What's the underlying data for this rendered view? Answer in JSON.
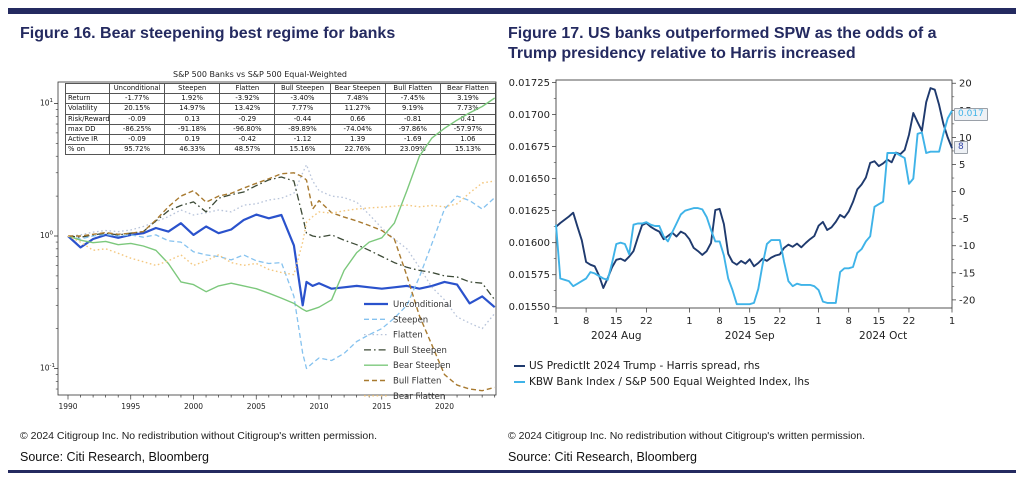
{
  "page": {
    "brand_color": "#242a60",
    "background": "#ffffff"
  },
  "figure16": {
    "title": "Figure 16. Bear steepening best regime for banks",
    "chart_title": "S&P 500 Banks vs S&P 500 Equal-Weighted",
    "copyright": "© 2024 Citigroup Inc. No redistribution without Citigroup's written permission.",
    "source": "Source: Citi Research, Bloomberg",
    "table": {
      "columns": [
        "",
        "Unconditional",
        "Steepen",
        "Flatten",
        "Bull Steepen",
        "Bear Steepen",
        "Bull Flatten",
        "Bear Flatten"
      ],
      "rows": [
        {
          "label": "Return",
          "values": [
            "-1.77%",
            "1.92%",
            "-3.92%",
            "-3.40%",
            "7.48%",
            "-7.45%",
            "3.19%"
          ]
        },
        {
          "label": "Volatility",
          "values": [
            "20.15%",
            "14.97%",
            "13.42%",
            "7.77%",
            "11.27%",
            "9.19%",
            "7.73%"
          ]
        },
        {
          "label": "Risk/Reward",
          "values": [
            "-0.09",
            "0.13",
            "-0.29",
            "-0.44",
            "0.66",
            "-0.81",
            "0.41"
          ]
        },
        {
          "label": "max DD",
          "values": [
            "-86.25%",
            "-91.18%",
            "-96.80%",
            "-89.89%",
            "-74.04%",
            "-97.86%",
            "-57.97%"
          ]
        },
        {
          "label": "Active IR",
          "values": [
            "-0.09",
            "0.19",
            "-0.42",
            "-1.12",
            "1.39",
            "-1.69",
            "1.06"
          ]
        },
        {
          "label": "% on",
          "values": [
            "95.72%",
            "46.33%",
            "48.57%",
            "15.16%",
            "22.76%",
            "23.09%",
            "15.13%"
          ]
        }
      ]
    }
  },
  "figure17": {
    "title_lines": [
      "Figure 17. US banks outperformed SPW as the odds of a",
      "Trump presidency relative to Harris increased"
    ],
    "copyright": "© 2024 Citigroup Inc. No redistribution without Citigroup's written permission.",
    "source": "Source: Citi Research, Bloomberg"
  },
  "chart_data": [
    {
      "type": "line",
      "title": "S&P 500 Banks vs S&P 500 Equal-Weighted",
      "yscale": "log",
      "ylim": [
        0.06,
        12
      ],
      "ytick_exponents": [
        1,
        0,
        -1
      ],
      "xticks": [
        1990,
        1995,
        2000,
        2005,
        2010,
        2015,
        2020
      ],
      "xrange": [
        1990,
        2024
      ],
      "legend_position": "inside-bottom-right",
      "x": [
        1990,
        1991,
        1992,
        1993,
        1994,
        1995,
        1996,
        1997,
        1998,
        1999,
        2000,
        2001,
        2002,
        2003,
        2004,
        2005,
        2006,
        2007,
        2008,
        2008.7,
        2009,
        2009.5,
        2010,
        2011,
        2012,
        2013,
        2014,
        2015,
        2016,
        2017,
        2018,
        2019,
        2020,
        2021,
        2022,
        2023,
        2024
      ],
      "series": [
        {
          "name": "Unconditional",
          "color": "#2a52cc",
          "dash": "solid",
          "width": 2.2,
          "values": [
            1.0,
            0.82,
            0.95,
            1.02,
            0.97,
            1.02,
            1.05,
            1.15,
            1.08,
            1.25,
            1.02,
            1.18,
            1.05,
            1.12,
            1.32,
            1.45,
            1.36,
            1.44,
            0.85,
            0.3,
            0.45,
            0.42,
            0.44,
            0.4,
            0.41,
            0.42,
            0.41,
            0.4,
            0.41,
            0.42,
            0.4,
            0.42,
            0.45,
            0.43,
            0.31,
            0.35,
            0.29
          ]
        },
        {
          "name": "Steepen",
          "color": "#85c2ef",
          "dash": "dash",
          "width": 1.3,
          "values": [
            1.0,
            0.95,
            1.0,
            1.03,
            1.0,
            1.02,
            0.98,
            1.02,
            0.92,
            0.9,
            0.76,
            0.72,
            0.7,
            0.66,
            0.72,
            0.65,
            0.62,
            0.63,
            0.35,
            0.13,
            0.1,
            0.11,
            0.12,
            0.115,
            0.13,
            0.16,
            0.18,
            0.2,
            0.24,
            0.3,
            0.49,
            0.88,
            1.6,
            2.0,
            1.85,
            1.6,
            1.95
          ]
        },
        {
          "name": "Flatten",
          "color": "#b8c4da",
          "dash": "dot",
          "width": 1.3,
          "values": [
            1.0,
            1.02,
            1.07,
            1.1,
            1.08,
            1.11,
            1.18,
            1.28,
            1.4,
            1.57,
            1.44,
            1.5,
            1.57,
            1.52,
            1.71,
            1.75,
            1.87,
            1.93,
            2.1,
            3.0,
            3.45,
            2.6,
            2.2,
            2.0,
            1.95,
            1.8,
            1.45,
            1.15,
            0.95,
            0.8,
            0.58,
            0.41,
            0.33,
            0.245,
            0.22,
            0.2,
            0.26
          ]
        },
        {
          "name": "Bull Steepen",
          "color": "#3c4a36",
          "dash": "dashdot",
          "width": 1.3,
          "values": [
            1.0,
            0.98,
            1.02,
            1.05,
            1.02,
            1.05,
            1.08,
            1.3,
            1.55,
            1.7,
            1.81,
            1.52,
            1.93,
            2.05,
            2.15,
            2.4,
            2.65,
            2.79,
            2.6,
            1.4,
            1.05,
            1.0,
            0.98,
            1.02,
            0.93,
            0.86,
            0.78,
            0.7,
            0.63,
            0.58,
            0.55,
            0.53,
            0.5,
            0.49,
            0.45,
            0.44,
            0.33
          ]
        },
        {
          "name": "Bear Steepen",
          "color": "#7cc87c",
          "dash": "solid",
          "width": 1.4,
          "values": [
            1.0,
            0.93,
            0.89,
            0.91,
            0.86,
            0.88,
            0.84,
            0.78,
            0.62,
            0.45,
            0.43,
            0.38,
            0.42,
            0.44,
            0.42,
            0.4,
            0.37,
            0.34,
            0.31,
            0.28,
            0.27,
            0.28,
            0.29,
            0.33,
            0.55,
            0.75,
            0.9,
            0.97,
            1.25,
            2.2,
            4.0,
            5.5,
            6.5,
            7.5,
            8.5,
            9.5,
            11.0
          ]
        },
        {
          "name": "Bull Flatten",
          "color": "#a87a30",
          "dash": "dash",
          "width": 1.4,
          "values": [
            1.0,
            1.0,
            1.03,
            1.06,
            1.03,
            1.05,
            1.08,
            1.32,
            1.66,
            2.0,
            2.2,
            1.8,
            2.0,
            2.1,
            2.3,
            2.5,
            2.7,
            2.95,
            3.0,
            2.8,
            2.64,
            1.6,
            1.85,
            1.5,
            1.39,
            1.3,
            1.2,
            1.1,
            0.95,
            0.5,
            0.25,
            0.15,
            0.09,
            0.075,
            0.07,
            0.068,
            0.072
          ]
        },
        {
          "name": "Bear Flatten",
          "color": "#f4c880",
          "dash": "dot",
          "width": 1.4,
          "values": [
            1.0,
            0.9,
            0.78,
            0.8,
            0.74,
            0.68,
            0.64,
            0.6,
            0.65,
            0.72,
            0.6,
            0.65,
            0.72,
            0.63,
            0.6,
            0.62,
            0.56,
            0.53,
            0.51,
            0.9,
            1.27,
            1.4,
            1.52,
            1.49,
            1.55,
            1.6,
            1.63,
            1.65,
            1.68,
            1.71,
            1.66,
            1.7,
            1.66,
            1.75,
            2.11,
            2.51,
            2.6
          ]
        }
      ]
    },
    {
      "type": "line",
      "dual_axis": true,
      "x_unit": "days since 2024-08-01",
      "left_axis": {
        "side": "lhs",
        "ticks": [
          0.0155,
          0.01575,
          0.016,
          0.01625,
          0.0165,
          0.01675,
          0.017,
          0.01725
        ],
        "range": [
          0.01549,
          0.01727
        ]
      },
      "right_axis": {
        "side": "rhs",
        "ticks": [
          -20,
          -15,
          -10,
          -5,
          0,
          5,
          10,
          15,
          20
        ],
        "range": [
          -21.5,
          20.6
        ]
      },
      "xticks_days": [
        0,
        7,
        14,
        21,
        31,
        38,
        45,
        52,
        61,
        68,
        75,
        82,
        92
      ],
      "xtick_labels": [
        "1",
        "8",
        "15",
        "22",
        "1",
        "8",
        "15",
        "22",
        "1",
        "8",
        "15",
        "22",
        "1"
      ],
      "month_labels": [
        {
          "label": "2024 Aug",
          "day": 14
        },
        {
          "label": "2024 Sep",
          "day": 45
        },
        {
          "label": "2024 Oct",
          "day": 76
        }
      ],
      "callouts": [
        {
          "text": "0.017",
          "axis": "lhs",
          "value": 0.017
        },
        {
          "text": "8",
          "axis": "rhs",
          "value": 8
        }
      ],
      "series": [
        {
          "name": "spread",
          "label": "US PredictIt 2024 Trump - Harris spread, rhs",
          "axis": "rhs",
          "color": "#1f3a6e",
          "width": 1.9,
          "values": [
            -6.5,
            -5.8,
            -5.2,
            -4.6,
            -3.9,
            -6.5,
            -9.0,
            -13.0,
            -13.5,
            -13.8,
            -15.5,
            -17.8,
            -16.0,
            -14.0,
            -12.6,
            -12.4,
            -12.8,
            -12.0,
            -11.0,
            -8.5,
            -6.2,
            -5.8,
            -6.5,
            -7.0,
            -7.4,
            -8.8,
            -8.2,
            -7.6,
            -8.3,
            -7.4,
            -7.8,
            -8.8,
            -10.4,
            -11.0,
            -11.7,
            -11.0,
            -9.5,
            -3.4,
            -3.2,
            -6.0,
            -11.5,
            -13.0,
            -13.5,
            -12.8,
            -13.3,
            -12.5,
            -13.8,
            -13.2,
            -12.4,
            -12.8,
            -12.2,
            -11.8,
            -11.6,
            -10.4,
            -9.8,
            -10.2,
            -9.6,
            -10.3,
            -9.5,
            -8.8,
            -8.2,
            -6.3,
            -5.6,
            -7.1,
            -6.6,
            -5.6,
            -4.3,
            -4.8,
            -3.7,
            -1.9,
            0.4,
            1.3,
            2.6,
            5.3,
            5.6,
            4.7,
            5.2,
            5.9,
            5.4,
            7.2,
            6.9,
            7.7,
            10.5,
            14.5,
            12.8,
            11.2,
            16.5,
            19.1,
            18.8,
            16.0,
            12.5,
            10.0,
            8.0
          ]
        },
        {
          "name": "kbw_ratio",
          "label": "KBW Bank Index / S&P 500 Equal Weighted Index, lhs",
          "axis": "lhs",
          "color": "#3fb3e8",
          "width": 1.9,
          "values": [
            0.01614,
            0.01572,
            0.01571,
            0.0157,
            0.01566,
            0.01568,
            0.0157,
            0.01572,
            0.01577,
            0.01576,
            0.01574,
            0.01572,
            0.01571,
            0.01584,
            0.01599,
            0.016,
            0.01599,
            0.01591,
            0.01614,
            0.01615,
            0.01615,
            0.01616,
            0.01614,
            0.01613,
            0.01613,
            0.01605,
            0.01601,
            0.01608,
            0.01615,
            0.01622,
            0.01625,
            0.01626,
            0.01627,
            0.01627,
            0.01626,
            0.0162,
            0.0161,
            0.01601,
            0.01601,
            0.0159,
            0.01572,
            0.01563,
            0.01552,
            0.01552,
            0.01552,
            0.01552,
            0.01553,
            0.01564,
            0.01583,
            0.01599,
            0.01602,
            0.01602,
            0.01602,
            0.01585,
            0.0157,
            0.01566,
            0.01568,
            0.01567,
            0.01567,
            0.01567,
            0.01566,
            0.01563,
            0.01554,
            0.01553,
            0.01553,
            0.01553,
            0.01577,
            0.0158,
            0.0158,
            0.01581,
            0.01592,
            0.01595,
            0.01601,
            0.01605,
            0.01628,
            0.0163,
            0.01632,
            0.0167,
            0.0167,
            0.0167,
            0.01668,
            0.01666,
            0.01646,
            0.0165,
            0.01685,
            0.01686,
            0.0167,
            0.01671,
            0.01671,
            0.01671,
            0.01685,
            0.01697,
            0.01703
          ]
        }
      ]
    }
  ]
}
